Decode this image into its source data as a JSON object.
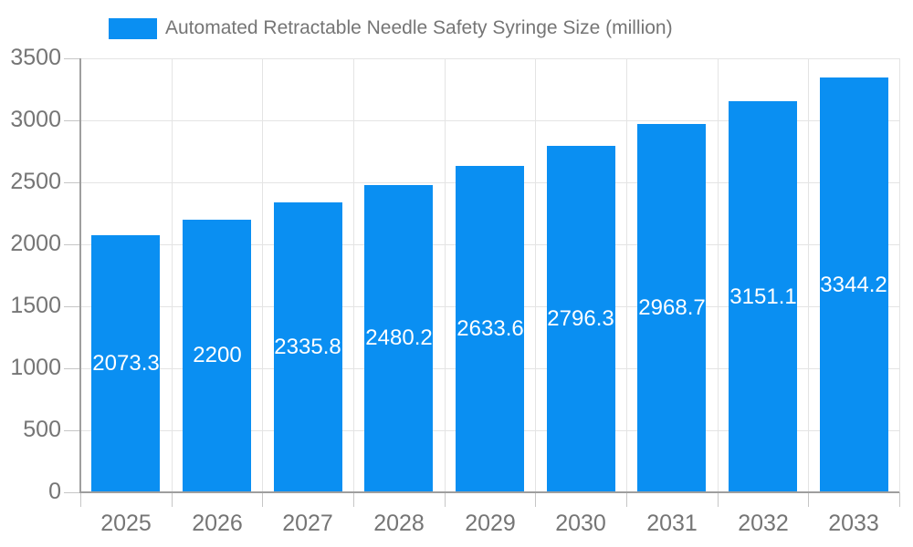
{
  "chart_data": {
    "type": "bar",
    "title": "Automated Retractable Needle Safety Syringe Size (million)",
    "categories": [
      "2025",
      "2026",
      "2027",
      "2028",
      "2029",
      "2030",
      "2031",
      "2032",
      "2033"
    ],
    "values": [
      2073.3,
      2200,
      2335.8,
      2480.2,
      2633.6,
      2796.3,
      2968.7,
      3151.1,
      3344.2
    ],
    "value_labels": [
      "2073.3",
      "2200",
      "2335.8",
      "2480.2",
      "2633.6",
      "2796.3",
      "2968.7",
      "3151.1",
      "3344.2"
    ],
    "xlabel": "",
    "ylabel": "",
    "ylim": [
      0,
      3500
    ],
    "ytick_step": 500,
    "ytick_labels": [
      "0",
      "500",
      "1000",
      "1500",
      "2000",
      "2500",
      "3000",
      "3500"
    ],
    "grid": true,
    "legend_position": "top",
    "legend": [
      {
        "label": "Automated Retractable Needle Safety Syringe Size (million)",
        "color": "#0a8ff2"
      }
    ],
    "colors": {
      "bar": "#0a8ff2",
      "gridline": "#e4e4e4",
      "axis": "#9e9e9e",
      "tick": "#c6c6c6",
      "axis_label": "#757575",
      "title": "#757575",
      "value_label": "#ffffff",
      "background": "#ffffff"
    }
  }
}
